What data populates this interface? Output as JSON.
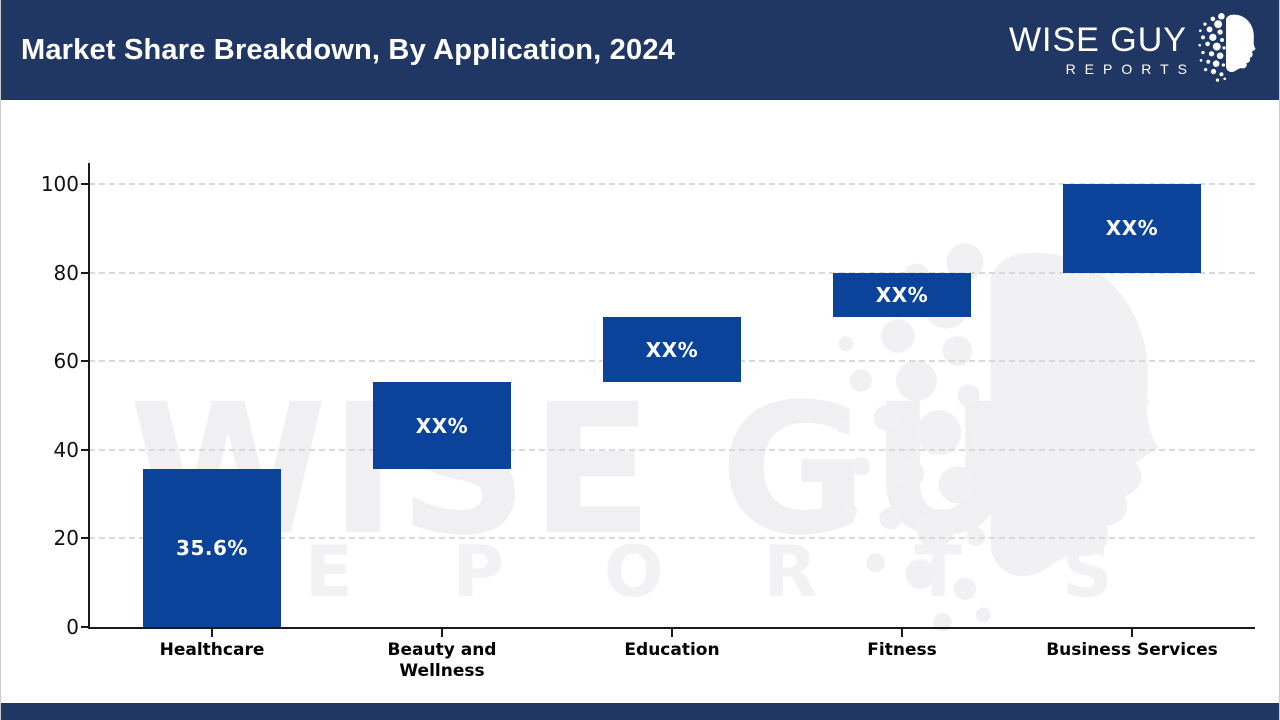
{
  "header": {
    "title": "Market Share Breakdown, By Application, 2024",
    "logo": {
      "line1": "WISE GUY",
      "line2": "REPORTS"
    }
  },
  "watermark": {
    "line1": "WISE GUY",
    "line2": "REPORTS"
  },
  "colors": {
    "header_navy": "#213763",
    "footer_navy": "#213763",
    "bar_blue": "#0a4399",
    "gridline_gray": "#d9d9d9",
    "axis_black": "#1a1a1a",
    "watermark_gray": "#f0f0f3",
    "value_label_white": "#ffffff"
  },
  "chart_data": {
    "type": "bar",
    "subtype": "waterfall",
    "title": "Market Share Breakdown, By Application, 2024",
    "categories": [
      "Healthcare",
      "Beauty and\nWellness",
      "Education",
      "Fitness",
      "Business Services"
    ],
    "segments": [
      {
        "category": "Healthcare",
        "start": 0,
        "end": 35.6,
        "label": "35.6%"
      },
      {
        "category": "Beauty and Wellness",
        "start": 35.6,
        "end": 55.2,
        "label": "XX%"
      },
      {
        "category": "Education",
        "start": 55.2,
        "end": 70,
        "label": "XX%"
      },
      {
        "category": "Fitness",
        "start": 70,
        "end": 80,
        "label": "XX%"
      },
      {
        "category": "Business Services",
        "start": 80,
        "end": 100,
        "label": "XX%"
      }
    ],
    "xlabel": "",
    "ylabel": "",
    "ylim": [
      0,
      100
    ],
    "yticks": [
      0,
      20,
      40,
      60,
      80,
      100
    ],
    "grid": "horizontal-dashed",
    "legend": "none",
    "bar_color": "#0a4399"
  }
}
